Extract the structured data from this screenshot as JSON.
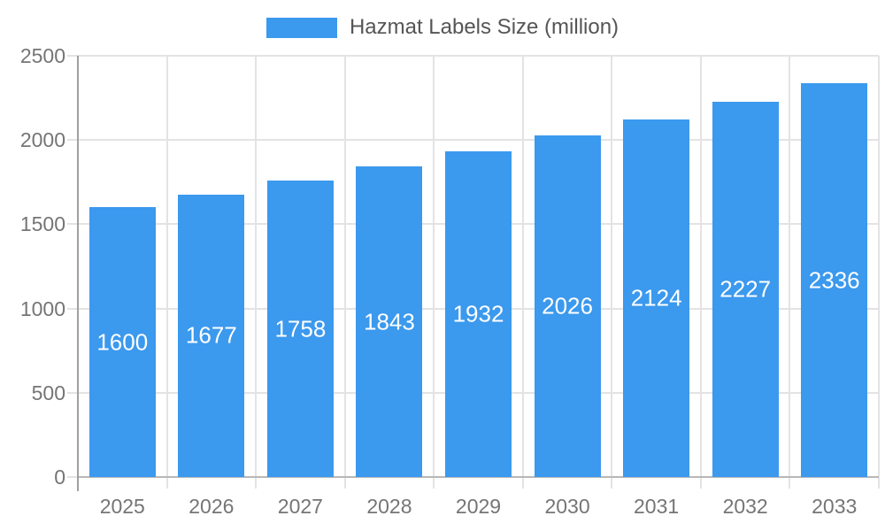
{
  "chart_data": {
    "type": "bar",
    "title": "Hazmat Labels Size (million)",
    "categories": [
      "2025",
      "2026",
      "2027",
      "2028",
      "2029",
      "2030",
      "2031",
      "2032",
      "2033"
    ],
    "values": [
      1600,
      1677,
      1758,
      1843,
      1932,
      2026,
      2124,
      2227,
      2336
    ],
    "xlabel": "",
    "ylabel": "",
    "ylim": [
      0,
      2500
    ],
    "yticks": [
      0,
      500,
      1000,
      1500,
      2000,
      2500
    ],
    "grid": true,
    "legend_position": "top-center",
    "value_labels": "inside-center",
    "colors": {
      "bar": "#3B99EE",
      "bar_value_label": "#FFFFFF",
      "grid": "#E3E3E3",
      "baseline": "#B8B8B8",
      "y_axis_line": "#A0A0A0",
      "axis_tick_label": "#757575",
      "legend_text": "#555555",
      "background": "#FFFFFF"
    }
  }
}
